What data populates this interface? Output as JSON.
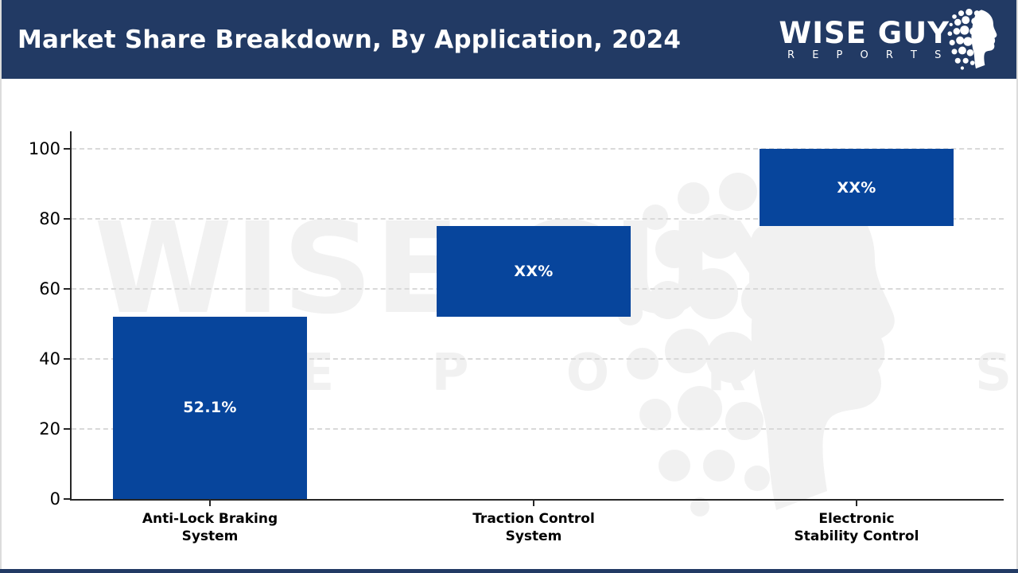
{
  "header": {
    "title": "Market Share Breakdown, By Application, 2024",
    "bg_color": "#223a64",
    "logo": {
      "line1": "WISE GUY",
      "line2": "R E P O R T S"
    }
  },
  "chart_data": {
    "type": "bar",
    "variant": "waterfall",
    "title": "Market Share Breakdown, By Application, 2024",
    "categories": [
      "Anti-Lock Braking System",
      "Traction Control System",
      "Electronic Stability Control"
    ],
    "category_lines": [
      [
        "Anti-Lock Braking",
        "System"
      ],
      [
        "Traction Control",
        "System"
      ],
      [
        "Electronic",
        "Stability Control"
      ]
    ],
    "segments": [
      {
        "category": "Anti-Lock Braking System",
        "start": 0,
        "end": 52.1,
        "label": "52.1%"
      },
      {
        "category": "Traction Control System",
        "start": 52.1,
        "end": 77.9,
        "label": "XX%"
      },
      {
        "category": "Electronic Stability Control",
        "start": 77.9,
        "end": 100,
        "label": "XX%"
      }
    ],
    "bar_labels": [
      "52.1%",
      "XX%",
      "XX%"
    ],
    "ylim": [
      0,
      100
    ],
    "yticks": [
      0,
      20,
      40,
      60,
      80,
      100
    ],
    "xlabel": "",
    "ylabel": "",
    "grid": {
      "axis": "y",
      "style": "dashed",
      "color": "#d9d9d9"
    },
    "legend": null,
    "bar_color": "#07459c",
    "bar_label_color": "#ffffff"
  },
  "watermark": {
    "line1": "WISE GUY",
    "line2": "R E P O R T S",
    "color": "#f1f1f1"
  },
  "colors": {
    "header_bg": "#223a64",
    "footer_bg": "#223a64",
    "axis": "#262626",
    "gridline": "#d9d9d9",
    "bar": "#07459c"
  }
}
